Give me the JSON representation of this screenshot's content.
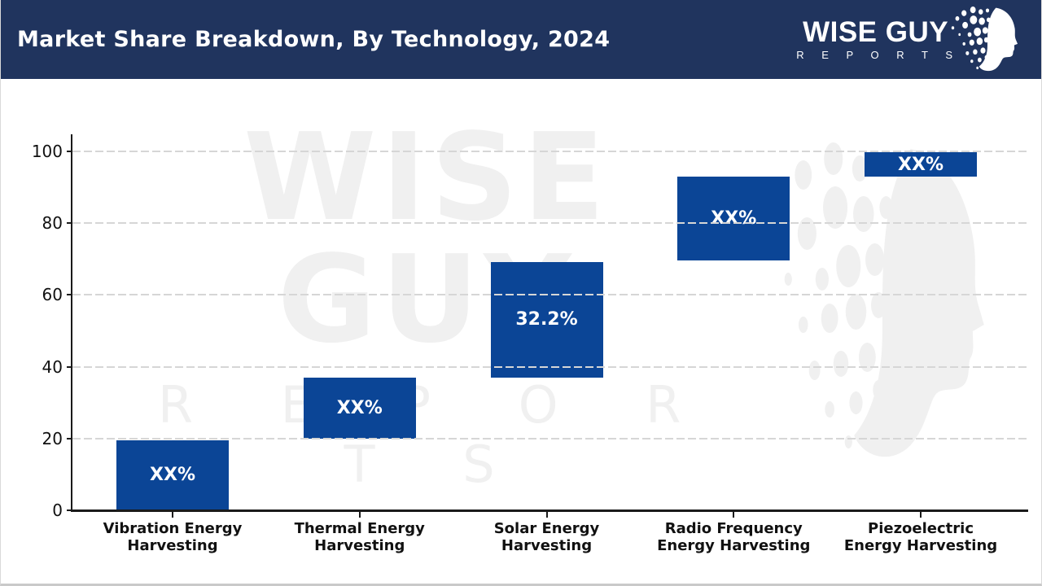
{
  "header": {
    "title": "Market Share Breakdown, By Technology, 2024",
    "background_color": "#20345E",
    "logo": {
      "wordmark": "WISE GUY",
      "subtitle": "R E P O R T S"
    }
  },
  "watermark": {
    "line1": "WISE GUY",
    "line2": "R E P O R T S"
  },
  "chart_data": {
    "type": "bar",
    "subtype": "waterfall",
    "title": "Market Share Breakdown, By Technology, 2024",
    "xlabel": "",
    "ylabel": "",
    "ylim": [
      0,
      105
    ],
    "yticks": [
      0,
      20,
      40,
      60,
      80,
      100
    ],
    "grid": "horizontal-dashed",
    "gridline_color": "#d6d6d6",
    "bar_color": "#0B4596",
    "bar_label_color": "#FFFFFF",
    "categories": [
      [
        "Vibration Energy",
        "Harvesting"
      ],
      [
        "Thermal Energy",
        "Harvesting"
      ],
      [
        "Solar Energy",
        "Harvesting"
      ],
      [
        "Radio Frequency",
        "Energy Harvesting"
      ],
      [
        "Piezoelectric",
        "Energy Harvesting"
      ]
    ],
    "bars": [
      {
        "category": "Vibration Energy Harvesting",
        "start": 0,
        "end": 19.5,
        "label": "XX%"
      },
      {
        "category": "Thermal Energy Harvesting",
        "start": 20,
        "end": 37,
        "label": "XX%"
      },
      {
        "category": "Solar Energy Harvesting",
        "start": 37,
        "end": 69.2,
        "label": "32.2%"
      },
      {
        "category": "Radio Frequency Energy Harvesting",
        "start": 69.5,
        "end": 93,
        "label": "XX%"
      },
      {
        "category": "Piezoelectric Energy Harvesting",
        "start": 93,
        "end": 99.7,
        "label": "XX%"
      }
    ]
  }
}
